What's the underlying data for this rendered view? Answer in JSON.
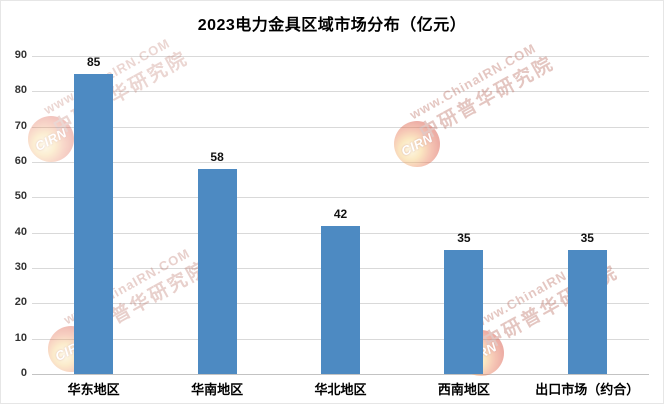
{
  "chart_data": {
    "type": "bar",
    "title": "2023电力金具区域市场分布（亿元）",
    "categories": [
      "华东地区",
      "华南地区",
      "华北地区",
      "西南地区",
      "出口市场（约合）"
    ],
    "values": [
      85,
      58,
      42,
      35,
      35
    ],
    "value_labels": [
      "85",
      "58",
      "42",
      "35",
      "35"
    ],
    "xlabel": "",
    "ylabel": "",
    "ylim": [
      0,
      90
    ],
    "yticks": [
      0,
      10,
      20,
      30,
      40,
      50,
      60,
      70,
      80,
      90
    ],
    "grid": true,
    "legend_position": "none",
    "bar_color": "#4d8ac2",
    "gridline_color": "#d9d9d9",
    "axis_line_color": "#c3c3c3",
    "title_color": "#000000",
    "tick_label_color": "#333333"
  },
  "watermark": {
    "site": "www.ChinaIRN.COM",
    "org": "中研普华研究院",
    "logo": "CIRN",
    "text_color": "#c07a6e"
  }
}
